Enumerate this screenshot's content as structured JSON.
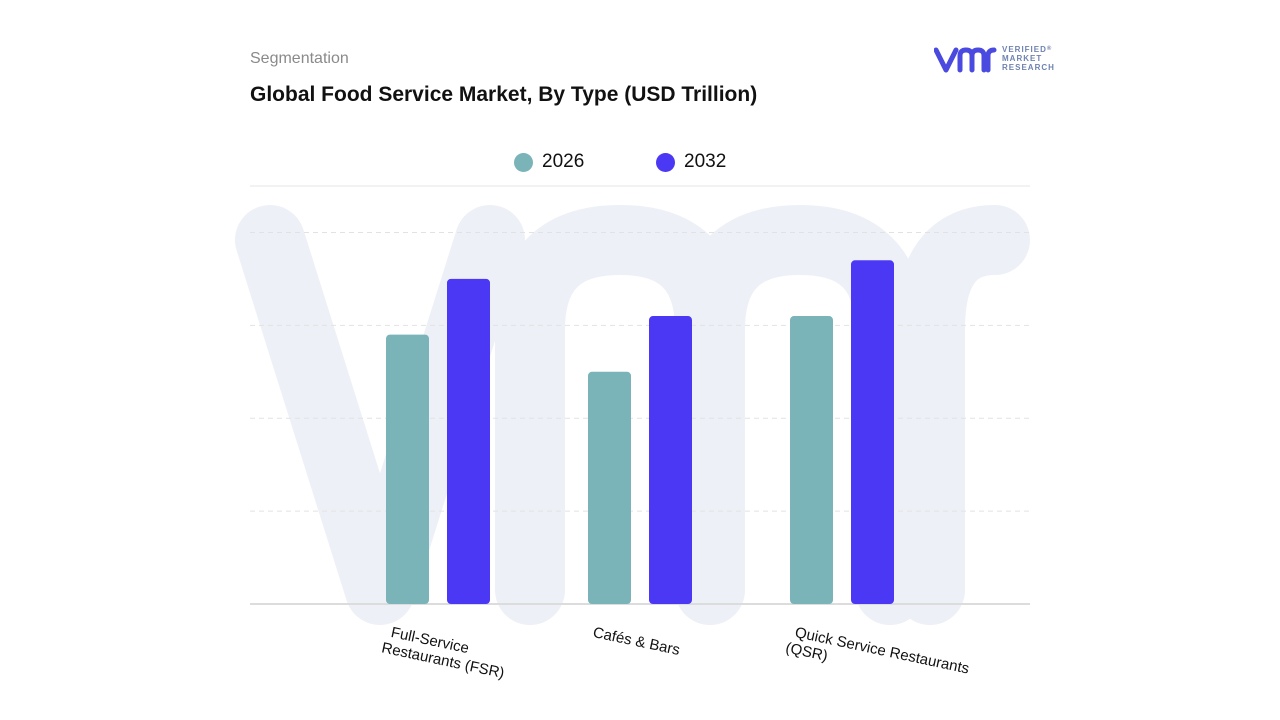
{
  "header": {
    "section_label": "Segmentation",
    "title": "Global Food Service Market, By Type (USD Trillion)"
  },
  "logo": {
    "line1": "VERIFIED",
    "line2": "MARKET",
    "line3": "RESEARCH",
    "mark": "vmr-logo-icon",
    "color": "#4a4ae0"
  },
  "chart_data": {
    "type": "bar",
    "title": "Global Food Service Market, By Type (USD Trillion)",
    "categories": [
      "Full-Service Restaurants (FSR)",
      "Cafés & Bars",
      "Quick Service Restaurants (QSR)"
    ],
    "category_lines": [
      [
        "Full-Service",
        "Restaurants (FSR)"
      ],
      [
        "Cafés & Bars"
      ],
      [
        "Quick Service Restaurants",
        "(QSR)"
      ]
    ],
    "series": [
      {
        "name": "2026",
        "color": "#7ab3b8",
        "values": [
          2.9,
          2.5,
          3.1
        ]
      },
      {
        "name": "2032",
        "color": "#4b38f5",
        "values": [
          3.5,
          3.1,
          3.7
        ]
      }
    ],
    "ylim": [
      0,
      4.5
    ],
    "grid": true,
    "legend": "top-center",
    "xlabel": "",
    "ylabel": ""
  }
}
